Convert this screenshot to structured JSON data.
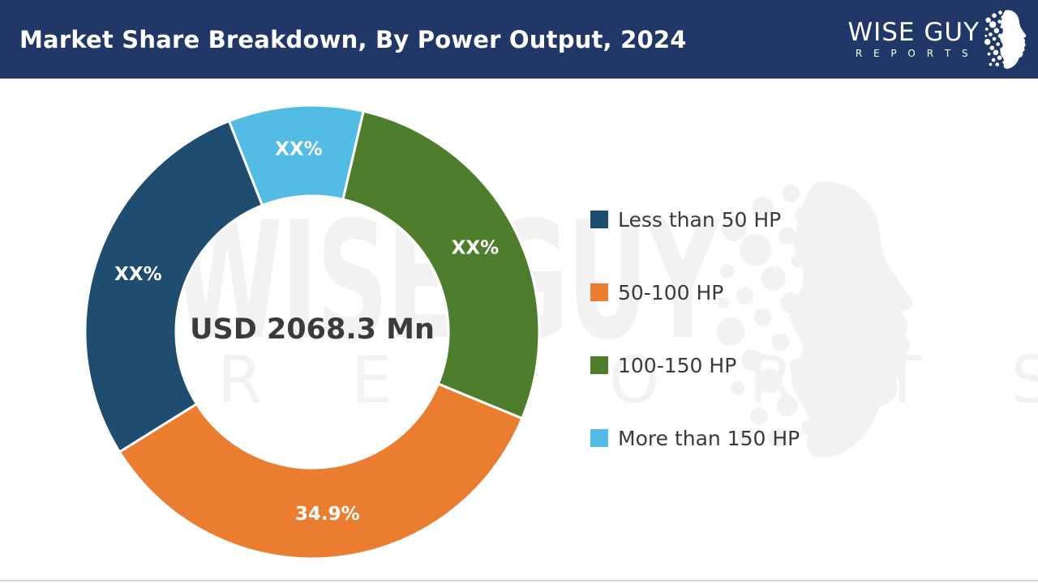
{
  "header": {
    "title": "Market Share Breakdown, By Power Output, 2024",
    "logo": {
      "line1": "WISE GUY",
      "line2": "R E P O R T S"
    }
  },
  "chart_data": {
    "type": "pie",
    "subtype": "donut",
    "title": "Market Share Breakdown, By Power Output, 2024",
    "center_label": "USD 2068.3 Mn",
    "direction": "clockwise",
    "start_angle_deg_from_top": -21.5,
    "legend_position": "right",
    "segments": [
      {
        "name": "More than 150 HP",
        "display_label": "XX%",
        "value_pct": 9.6,
        "color": "#52BCE5"
      },
      {
        "name": "100-150 HP",
        "display_label": "XX%",
        "value_pct": 27.6,
        "color": "#4E7E2D"
      },
      {
        "name": "50-100 HP",
        "display_label": "34.9%",
        "value_pct": 34.9,
        "color": "#EB7D31"
      },
      {
        "name": "Less than 50 HP",
        "display_label": "XX%",
        "value_pct": 27.9,
        "color": "#1F4D6F"
      }
    ]
  },
  "legend": {
    "items": [
      {
        "label": "Less than 50 HP",
        "color": "#1F4D6F"
      },
      {
        "label": "50-100 HP",
        "color": "#EB7D31"
      },
      {
        "label": "100-150 HP",
        "color": "#4E7E2D"
      },
      {
        "label": "More than 150 HP",
        "color": "#52BCE5"
      }
    ]
  },
  "watermark": {
    "line1": "WISE GUY",
    "line2": "R E P O R T S"
  },
  "colors": {
    "header_bg": "#203767",
    "watermark": "#F2F2F2",
    "slice_label": "#FFFFFF",
    "center_text": "#3B3B3B",
    "legend_text": "#3A3A3A",
    "bottom_line": "#D8D8D8"
  }
}
